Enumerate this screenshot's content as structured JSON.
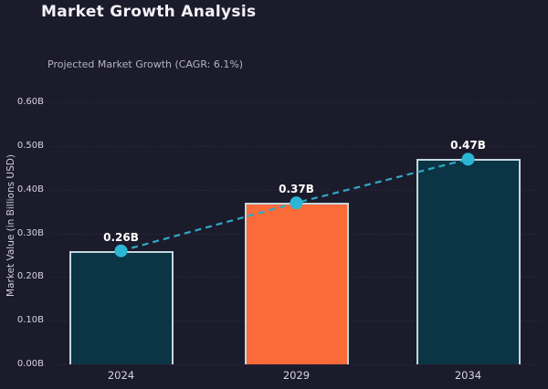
{
  "chart_data": {
    "type": "bar",
    "title": "Market Growth Analysis",
    "subtitle": "Projected Market Growth (CAGR: 6.1%)",
    "cagr": "6.1%",
    "categories": [
      "2024",
      "2029",
      "2034"
    ],
    "values": [
      0.26,
      0.37,
      0.47
    ],
    "value_labels": [
      "0.26B",
      "0.37B",
      "0.47B"
    ],
    "series": [
      {
        "name": "Market Value",
        "type": "bar",
        "values": [
          0.26,
          0.37,
          0.47
        ]
      },
      {
        "name": "Trend",
        "type": "line",
        "style": "dashed-with-markers",
        "values": [
          0.26,
          0.37,
          0.47
        ]
      }
    ],
    "xlabel": "",
    "ylabel": "Market Value (in Billions USD)",
    "yticks": [
      "0.00B",
      "0.10B",
      "0.20B",
      "0.30B",
      "0.40B",
      "0.50B",
      "0.60B"
    ],
    "ytick_values": [
      0.0,
      0.1,
      0.2,
      0.3,
      0.4,
      0.5,
      0.6
    ],
    "ylim": [
      0,
      0.6
    ],
    "grid": "faint horizontal dashed",
    "legend": "none"
  },
  "colors": {
    "background": "#1c1b2c",
    "bar_fills": [
      "#0b3444",
      "#fb6a39",
      "#0b3444"
    ],
    "bar_border": "#c3d8de",
    "trend_line": "#2fa9c6",
    "marker": "#2ab6d4",
    "title_text": "#f2f1f6",
    "subtitle_text": "#b5b3c2",
    "tick_text": "#d6d4e0",
    "axis_label_text": "#cfcdda",
    "value_label_text": "#ffffff"
  }
}
